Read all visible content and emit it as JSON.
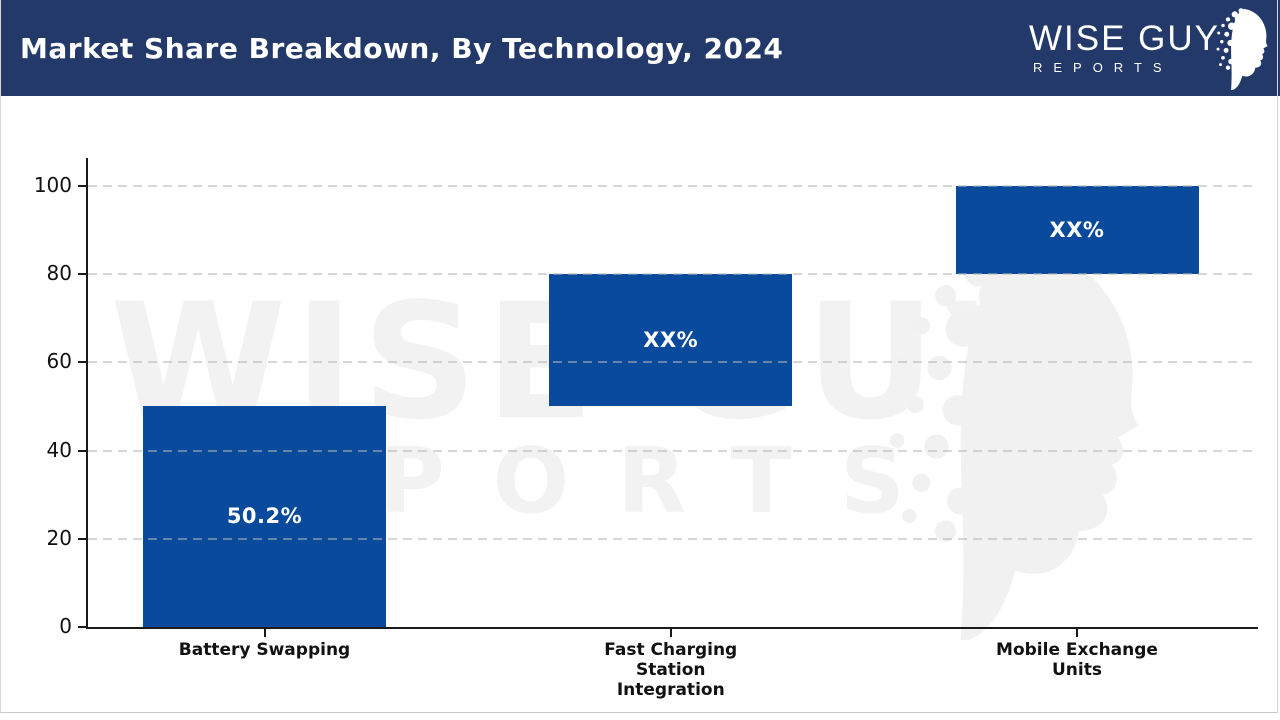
{
  "header": {
    "title": "Market Share Breakdown, By Technology, 2024",
    "logo": {
      "brand_line1": "WISE GUY",
      "brand_line2": "REPORTS"
    }
  },
  "watermark": {
    "text_line1": "WISE GUY",
    "text_line2": "REPORTS"
  },
  "colors": {
    "header_bg": "#22396a",
    "bar": "#0a4a9c",
    "bar_label": "#ffffff",
    "grid": "#d9d9d9",
    "axis": "#1a1a1a",
    "watermark": "#f2f2f2"
  },
  "chart_data": {
    "type": "bar",
    "variant": "floating-segment-waterfall",
    "title": "Market Share Breakdown, By Technology, 2024",
    "categories": [
      "Battery Swapping",
      "Fast Charging Station Integration",
      "Mobile Exchange Units"
    ],
    "category_label_lines": [
      [
        "Battery Swapping"
      ],
      [
        "Fast Charging",
        "Station",
        "Integration"
      ],
      [
        "Mobile Exchange",
        "Units"
      ]
    ],
    "segments": [
      {
        "category": "Battery Swapping",
        "start": 0,
        "end": 50.2,
        "label": "50.2%"
      },
      {
        "category": "Fast Charging Station Integration",
        "start": 50.2,
        "end": 80,
        "label": "XX%"
      },
      {
        "category": "Mobile Exchange Units",
        "start": 80,
        "end": 100,
        "label": "XX%"
      }
    ],
    "xlabel": "",
    "ylabel": "",
    "yticks": [
      0,
      20,
      40,
      60,
      80,
      100
    ],
    "ylim": [
      0,
      107
    ],
    "grid": {
      "axis": "y",
      "style": "dashed",
      "on": true
    },
    "legend": "none",
    "bar_color": "#0a4a9c",
    "bar_label_color": "#ffffff"
  }
}
